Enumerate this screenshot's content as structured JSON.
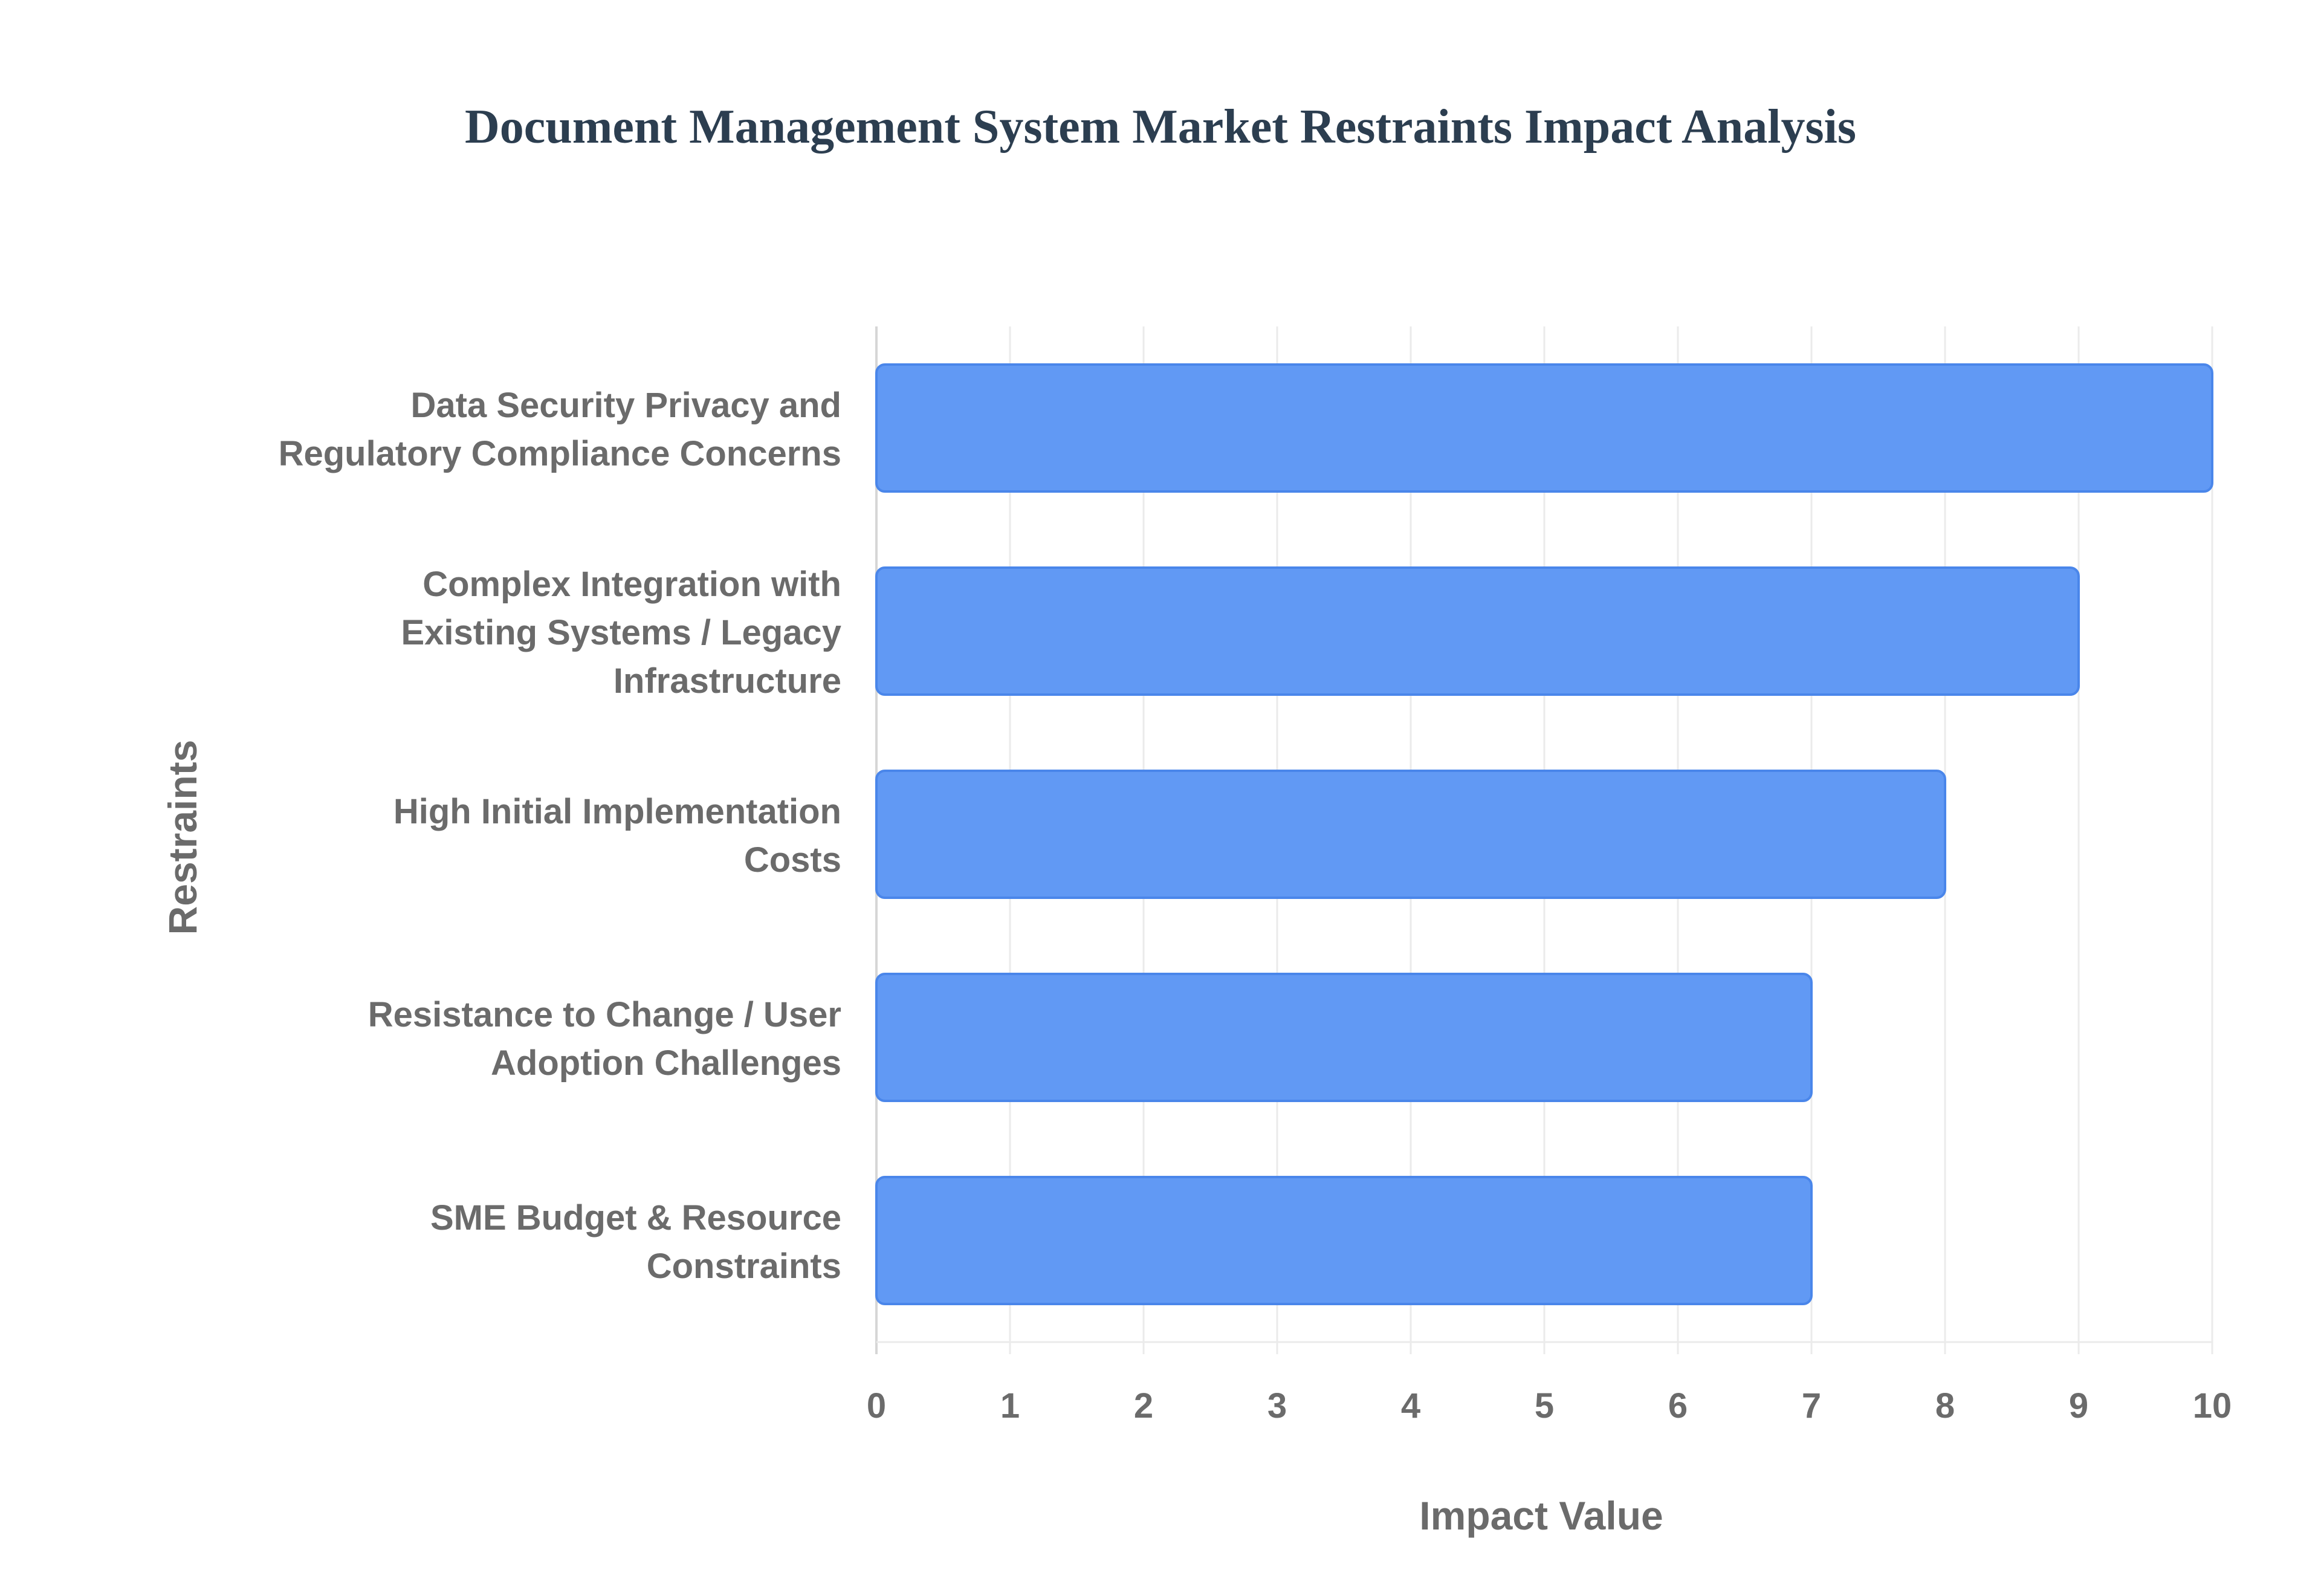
{
  "chart_data": {
    "type": "bar",
    "orientation": "horizontal",
    "title": "Document Management System Market Restraints Impact Analysis",
    "xlabel": "Impact Value",
    "ylabel": "Restraints",
    "categories": [
      [
        "Data Security Privacy and",
        "Regulatory Compliance Concerns"
      ],
      [
        "Complex Integration with",
        "Existing Systems / Legacy",
        "Infrastructure"
      ],
      [
        "High Initial Implementation",
        "Costs"
      ],
      [
        "Resistance to Change / User",
        "Adoption Challenges"
      ],
      [
        "SME Budget & Resource",
        "Constraints"
      ]
    ],
    "values": [
      10,
      9,
      8,
      7,
      7
    ],
    "xlim": [
      0,
      10
    ],
    "xticks": [
      "0",
      "1",
      "2",
      "3",
      "4",
      "5",
      "6",
      "7",
      "8",
      "9",
      "10"
    ],
    "grid": true,
    "bar_color": "#6199f4",
    "bar_border_color": "#4a86ea",
    "title_color": "#2c3e50",
    "label_color": "#6b6b6b"
  }
}
